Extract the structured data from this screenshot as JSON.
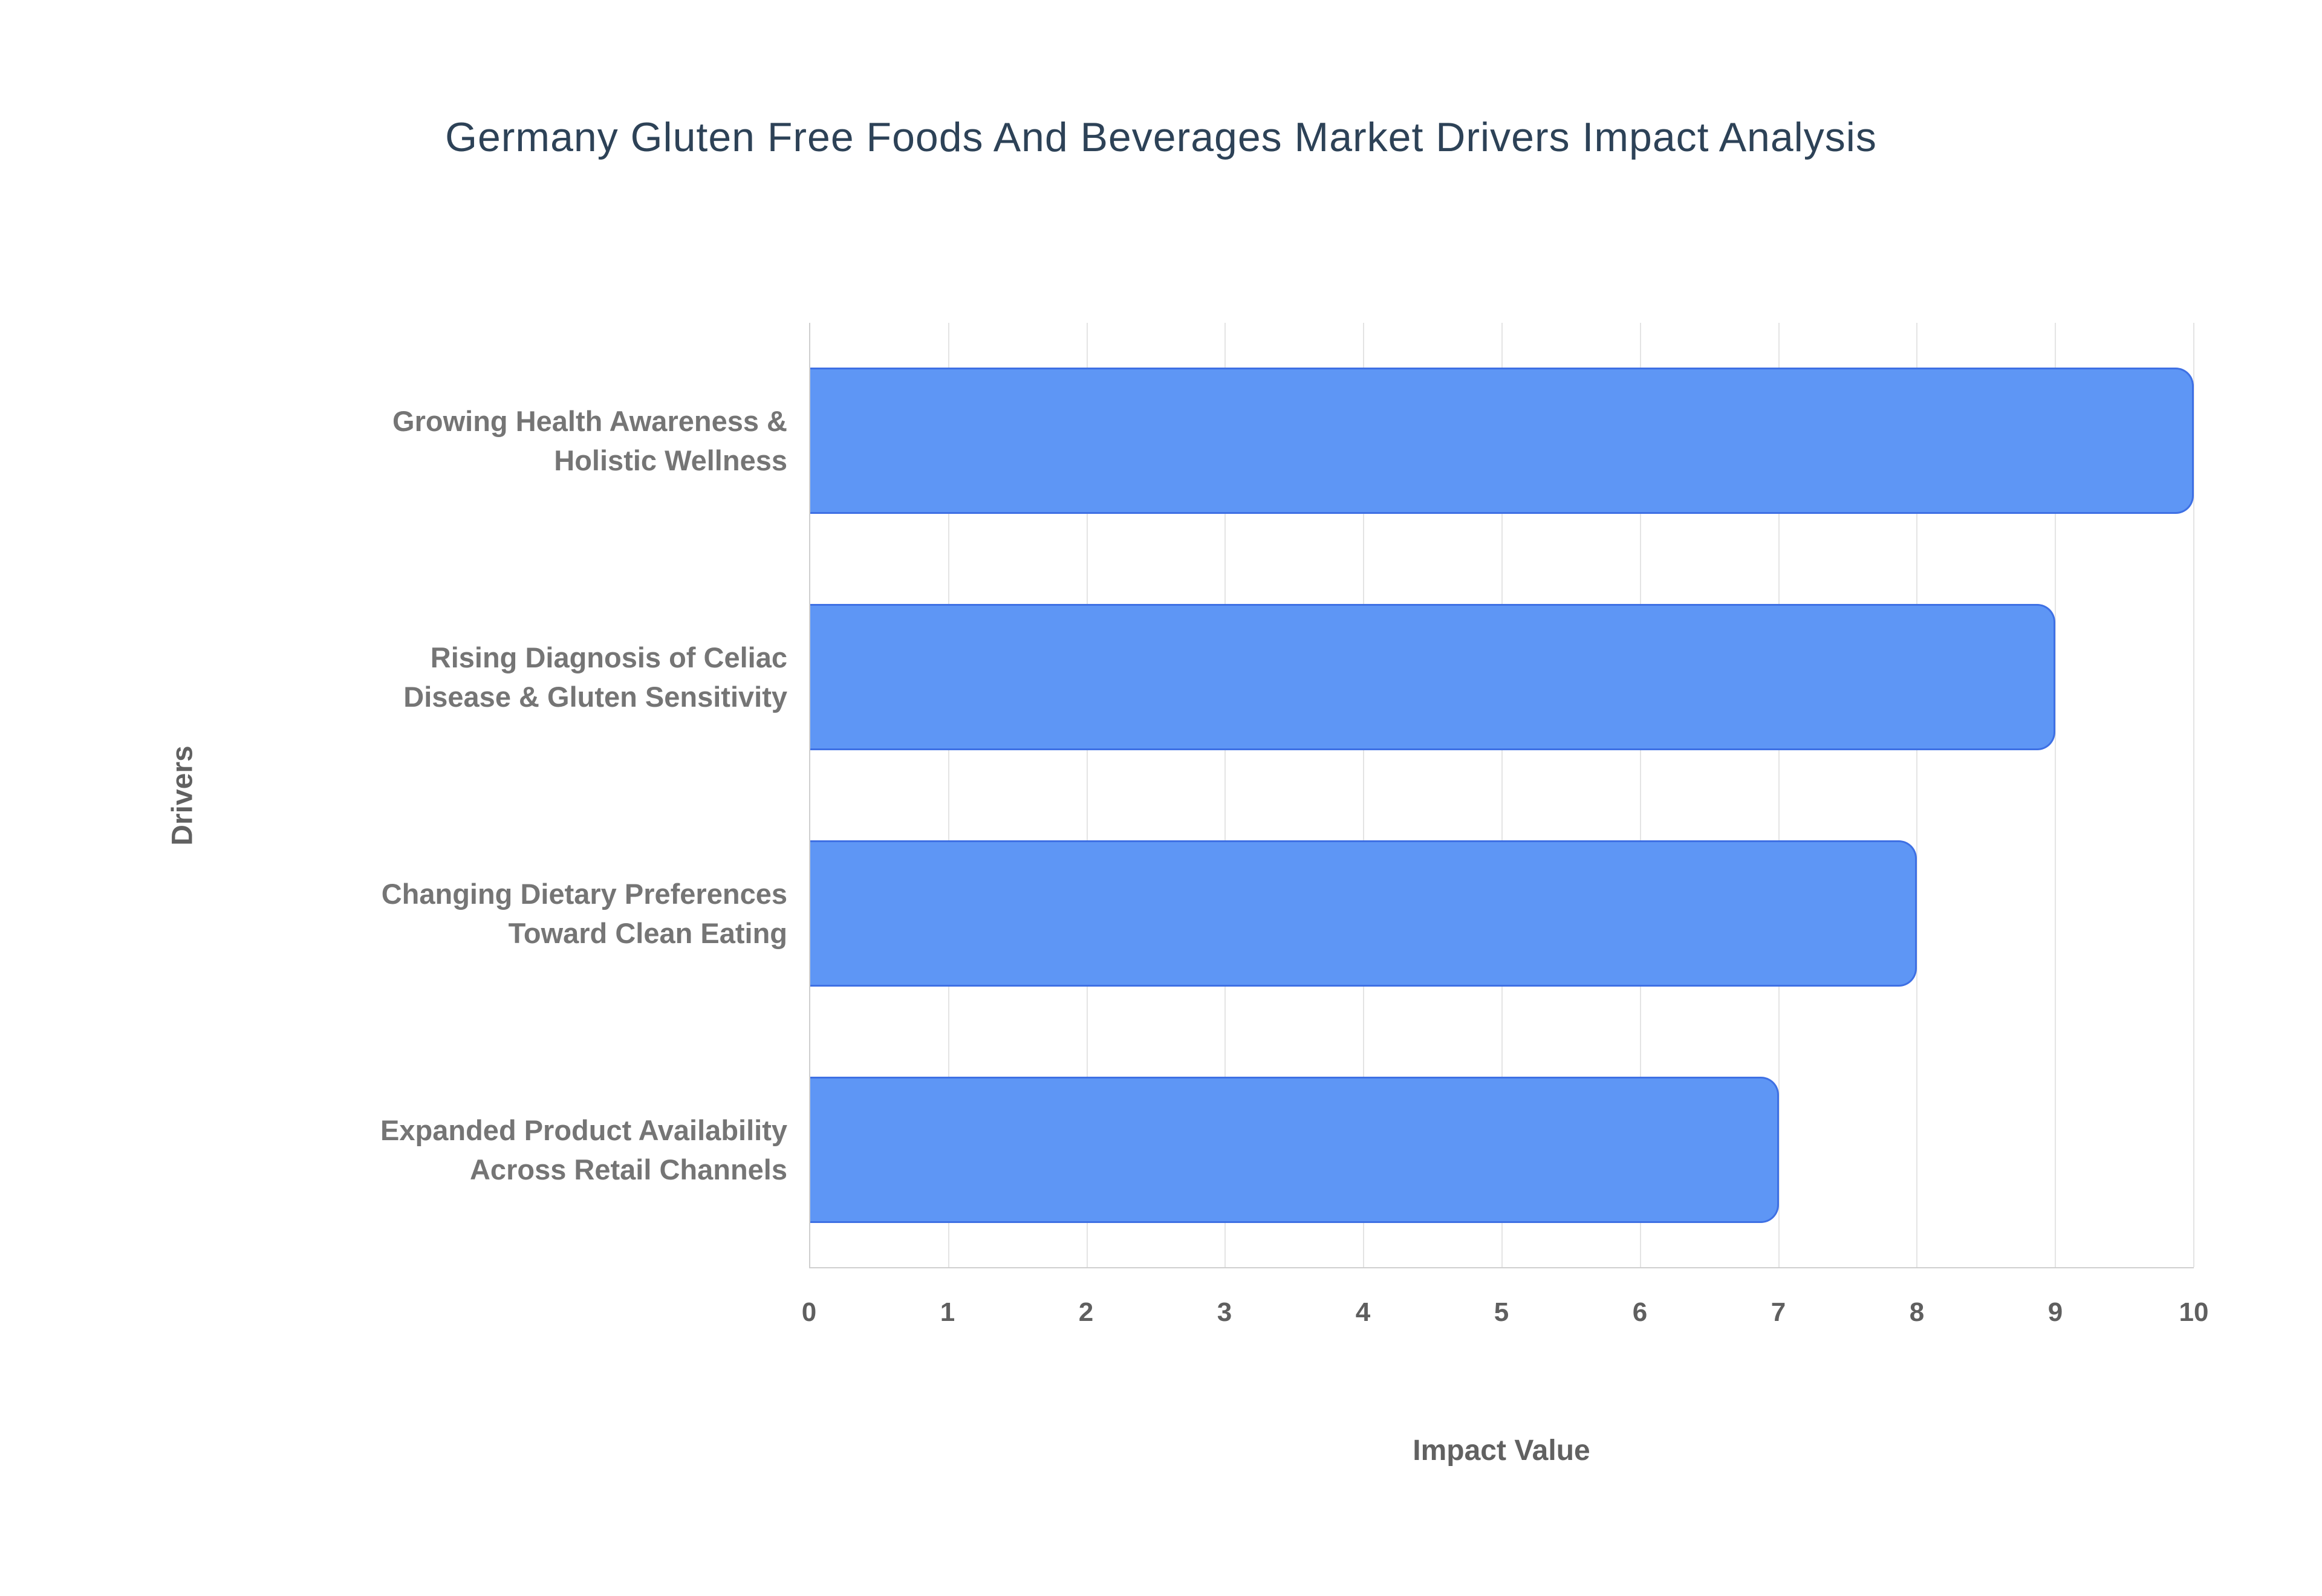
{
  "title": "Germany Gluten Free Foods And Beverages Market Drivers Impact Analysis",
  "chart_data": {
    "type": "bar",
    "orientation": "horizontal",
    "title": "Germany Gluten Free Foods And Beverages Market Drivers Impact Analysis",
    "categories": [
      "Growing Health Awareness & Holistic Wellness",
      "Rising Diagnosis of Celiac Disease & Gluten Sensitivity",
      "Changing Dietary Preferences Toward Clean Eating",
      "Expanded Product Availability Across Retail Channels"
    ],
    "categories_display": [
      "Growing Health Awareness &\nHolistic Wellness",
      "Rising Diagnosis of Celiac\nDisease & Gluten Sensitivity",
      "Changing Dietary Preferences\nToward Clean Eating",
      "Expanded Product Availability\nAcross Retail Channels"
    ],
    "values": [
      10,
      9,
      8,
      7
    ],
    "xlabel": "Impact Value",
    "ylabel": "Drivers",
    "xlim": [
      0,
      10
    ],
    "xticks": [
      0,
      1,
      2,
      3,
      4,
      5,
      6,
      7,
      8,
      9,
      10
    ],
    "grid": true,
    "legend": false
  },
  "colors": {
    "background": "#ffffff",
    "title_text": "#2d4257",
    "bar_fill": "#5e96f5",
    "bar_border": "#3e70e4",
    "gridline": "#e4e4e4",
    "axis_line": "#cfcfcf",
    "category_label": "#757575",
    "tick_label": "#5f5f5f",
    "axis_title": "#616161"
  }
}
